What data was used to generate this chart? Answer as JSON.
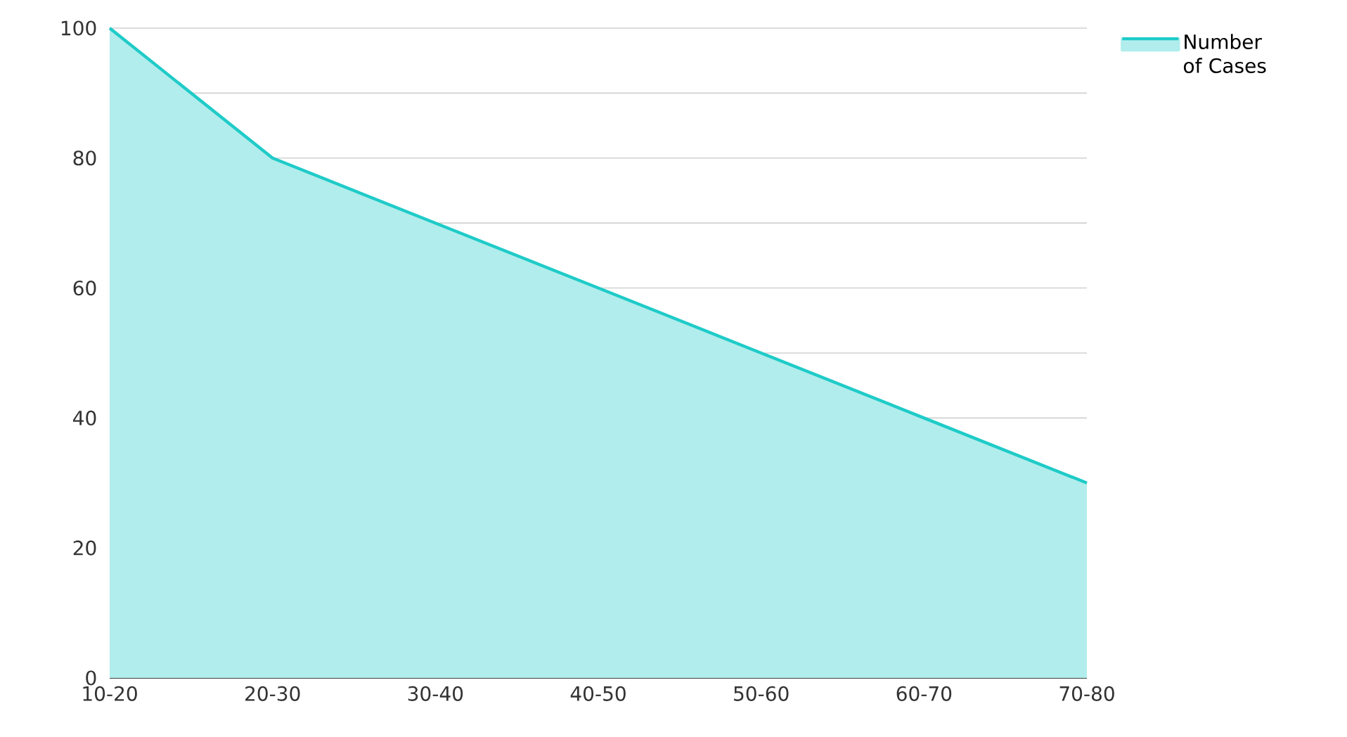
{
  "chart_data": {
    "type": "area",
    "categories": [
      "10-20",
      "20-30",
      "30-40",
      "40-50",
      "50-60",
      "60-70",
      "70-80"
    ],
    "series": [
      {
        "name": "Number of Cases",
        "color": "#1fcbc8",
        "values": [
          100,
          80,
          70,
          60,
          50,
          40,
          30
        ]
      }
    ],
    "ylim": [
      0,
      100
    ],
    "yticks": [
      0,
      {
        "value": 10,
        "label": null
      },
      20,
      {
        "value": 30,
        "label": null
      },
      40,
      {
        "value": 50,
        "label": null
      },
      60,
      {
        "value": 70,
        "label": null
      },
      80,
      {
        "value": 90,
        "label": null
      },
      100
    ],
    "grid": "y",
    "legend": "top right"
  }
}
